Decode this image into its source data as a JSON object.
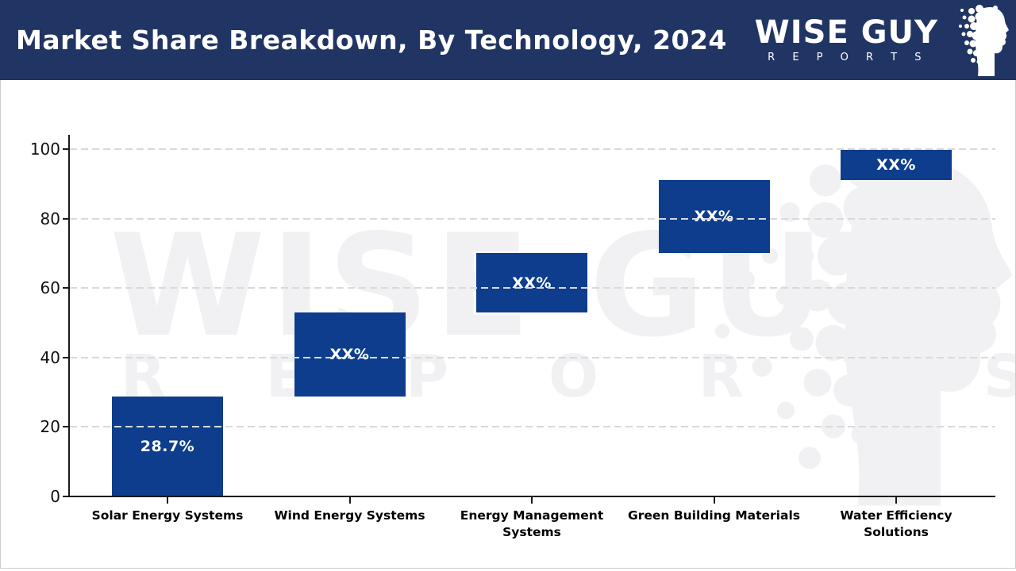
{
  "header": {
    "title": "Market Share Breakdown, By Technology, 2024",
    "background_color": "#213564",
    "logo": {
      "name": "WISE GUY",
      "sub": "R E P O R T S",
      "face_icon": "dotted-head-profile"
    }
  },
  "watermark": {
    "line1": "WISE GUY",
    "line2": "R E P O R T S"
  },
  "chart_data": {
    "type": "bar",
    "subtype": "waterfall-floating-bars",
    "title": "Market Share Breakdown, By Technology, 2024",
    "categories": [
      "Solar Energy Systems",
      "Wind Energy Systems",
      "Energy Management Systems",
      "Green Building Materials",
      "Water Efficiency Solutions"
    ],
    "series": [
      {
        "name": "Market share (%)",
        "segments": [
          {
            "category": "Solar Energy Systems",
            "start": 0,
            "end": 28.7,
            "label": "28.7%"
          },
          {
            "category": "Wind Energy Systems",
            "start": 28.7,
            "end": 53,
            "label": "XX%"
          },
          {
            "category": "Energy Management Systems",
            "start": 53,
            "end": 70,
            "label": "XX%"
          },
          {
            "category": "Green Building Materials",
            "start": 70,
            "end": 91.2,
            "label": "XX%"
          },
          {
            "category": "Water Efficiency Solutions",
            "start": 91.2,
            "end": 99.7,
            "label": "XX%"
          }
        ]
      }
    ],
    "xlabel": "",
    "ylabel": "",
    "ylim": [
      0,
      100
    ],
    "yticks": [
      0,
      20,
      40,
      60,
      80,
      100
    ],
    "grid": "horizontal-dashed",
    "legend": "none",
    "bar_color": "#0d3d8c",
    "bar_label_color": "#ffffff",
    "axis_color": "#1a1a1a",
    "gridline_color": "#d9d9d9"
  }
}
